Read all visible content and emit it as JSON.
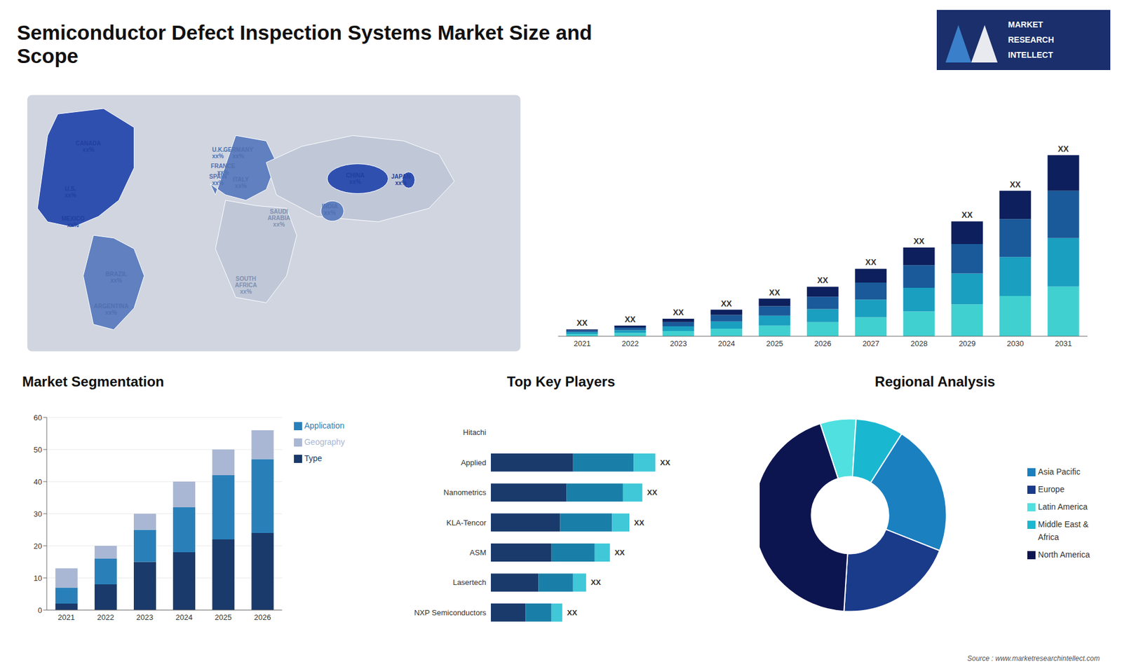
{
  "chart_data": [
    {
      "type": "map",
      "annotations": [
        "U.S.\nxx%",
        "CANADA\nxx%",
        "MEXICO\nxx%",
        "BRAZIL\nxx%",
        "ARGENTINA\nxx%",
        "U.K.\nxx%",
        "FRANCE\nxx%",
        "GERMANY\nxx%",
        "SPAIN\nxx%",
        "ITALY\nxx%",
        "SAUDI\nARABIA\nxx%",
        "SOUTH\nAFRICA\nxx%",
        "CHINA\nxx%",
        "JAPAN\nxx%",
        "INDIA\nxx%"
      ],
      "colors": [
        "#2040a0",
        "#2040a0",
        "#2040a0",
        "#5070b0",
        "#5070b0",
        "#5070b0",
        "#5070b0",
        "#5070b0",
        "#5070b0",
        "#5070b0",
        "#8090b0",
        "#8090b0",
        "#2040a0",
        "#2040a0",
        "#5070b0"
      ]
    },
    {
      "type": "bar",
      "title": "Semiconductor Defect Inspection Systems Market Size and\nScope",
      "annotations": [
        "MARKET",
        "RESEARCH",
        "INTELLECT",
        "Source : www.marketresearchintellect.com"
      ],
      "stacked": true,
      "tick_labels": "x",
      "categories": [
        "2021",
        "2022",
        "2023",
        "2024",
        "2025",
        "2026",
        "2027",
        "2028",
        "2029",
        "2030",
        "2031"
      ],
      "series": [
        {
          "color": "#40d0d0",
          "values": [
            1.0,
            1.4,
            2.2,
            3.2,
            4.5,
            6.0,
            8.0,
            10.5,
            13.5,
            17.0,
            21.0
          ]
        },
        {
          "color": "#1a9fc0",
          "values": [
            0.8,
            1.2,
            2.0,
            3.0,
            4.2,
            5.5,
            7.5,
            10.0,
            13.0,
            16.5,
            20.5
          ]
        },
        {
          "color": "#1a5a9a",
          "values": [
            0.7,
            1.1,
            1.8,
            2.8,
            4.0,
            5.2,
            7.2,
            9.5,
            12.5,
            16.0,
            20.0
          ]
        },
        {
          "color": "#0d1f5c",
          "values": [
            0.4,
            0.8,
            1.4,
            2.2,
            3.2,
            4.2,
            5.8,
            7.5,
            9.5,
            12.0,
            15.0
          ],
          "value_labels": [
            "XX",
            "XX",
            "XX",
            "XX",
            "XX",
            "XX",
            "XX",
            "XX",
            "XX",
            "XX",
            "XX"
          ]
        }
      ],
      "ylim": [
        0,
        97.92
      ]
    },
    {
      "type": "bar",
      "title": "Market Segmentation",
      "stacked": true,
      "grid": true,
      "legend": "right",
      "categories": [
        "2021",
        "2022",
        "2023",
        "2024",
        "2025",
        "2026"
      ],
      "series": [
        {
          "name": "Type",
          "color": "#1a3a6b",
          "values": [
            2,
            8,
            15,
            18,
            22,
            24
          ]
        },
        {
          "name": "Application",
          "color": "#2980b9",
          "values": [
            5,
            8,
            10,
            14,
            20,
            23
          ]
        },
        {
          "name": "Geography",
          "color": "#aab7d4",
          "values": [
            6,
            4,
            5,
            8,
            8,
            9
          ]
        }
      ],
      "ylim": [
        0,
        60
      ],
      "yticks": [
        0,
        10,
        20,
        30,
        40,
        50,
        60
      ]
    },
    {
      "type": "bar",
      "title": "Top Key Players",
      "orientation": "horizontal",
      "stacked": true,
      "tick_labels": "y",
      "categories": [
        "Hitachi",
        "Applied",
        "Nanometrics",
        "KLA-Tencor",
        "ASM",
        "Lasertech",
        "NXP Semiconductors"
      ],
      "series": [
        {
          "color": "#1a3a6b",
          "values": [
            0.0,
            3.8,
            3.5,
            3.2,
            2.8,
            2.2,
            1.6
          ]
        },
        {
          "color": "#1a7fa8",
          "values": [
            0.0,
            2.8,
            2.6,
            2.4,
            2.0,
            1.6,
            1.2
          ]
        },
        {
          "color": "#40c8d8",
          "values": [
            0.0,
            1.0,
            0.9,
            0.8,
            0.7,
            0.6,
            0.5
          ],
          "value_labels": [
            null,
            "XX",
            "XX",
            "XX",
            "XX",
            "XX",
            "XX"
          ]
        }
      ],
      "xlim": [
        0,
        10.26
      ]
    },
    {
      "type": "pie",
      "title": "Regional Analysis",
      "legend": "right",
      "categories": [
        "Latin America",
        "Middle East &\nAfrica",
        "Asia Pacific",
        "Europe",
        "North America"
      ],
      "values": [
        6,
        8,
        22,
        20,
        44
      ],
      "colors": [
        "#50e0e0",
        "#1ab8d0",
        "#1a80c0",
        "#1a3a8a",
        "#0d1550"
      ]
    }
  ]
}
